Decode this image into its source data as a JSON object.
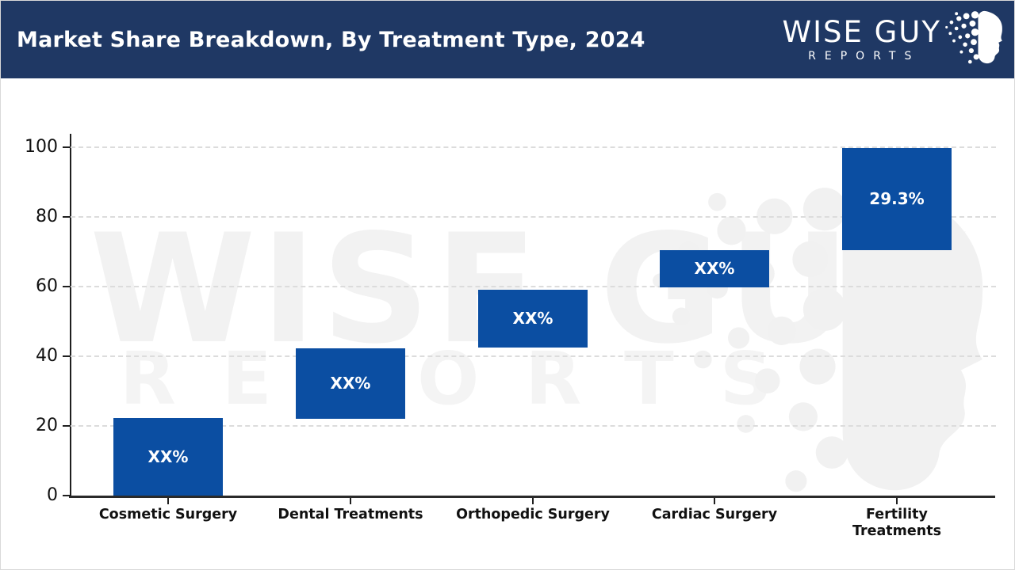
{
  "header": {
    "title": "Market Share Breakdown, By Treatment Type, 2024",
    "logo": {
      "line1": "WISE GUY",
      "line2": "REPORTS"
    }
  },
  "watermark": {
    "line1": "WISE GUY",
    "line2": "REPORTS"
  },
  "colors": {
    "header_bg": "#1F3864",
    "bar": "#0B4EA2",
    "bar_label": "#ffffff",
    "axis": "#1f1f1f",
    "grid": "#dcdcdc",
    "watermark": "#f2f2f2",
    "page_border": "#d9d9d9"
  },
  "chart_data": {
    "type": "bar",
    "subtype": "waterfall",
    "title": "Market Share Breakdown, By Treatment Type, 2024",
    "categories": [
      "Cosmetic Surgery",
      "Dental Treatments",
      "Orthopedic Surgery",
      "Cardiac Surgery",
      "Fertility Treatments"
    ],
    "segments": [
      {
        "category": "Cosmetic Surgery",
        "start": 0,
        "end": 22.3,
        "label": "XX%"
      },
      {
        "category": "Dental Treatments",
        "start": 22.1,
        "end": 42.3,
        "label": "XX%"
      },
      {
        "category": "Orthopedic Surgery",
        "start": 42.5,
        "end": 59.1,
        "label": "XX%"
      },
      {
        "category": "Cardiac Surgery",
        "start": 59.8,
        "end": 70.5,
        "label": "XX%"
      },
      {
        "category": "Fertility Treatments",
        "start": 70.5,
        "end": 99.8,
        "label": "29.3%"
      }
    ],
    "xlabel": "",
    "ylabel": "",
    "yticks": [
      0,
      20,
      40,
      60,
      80,
      100
    ],
    "ylim": [
      0,
      104
    ],
    "grid": "horizontal-dashed",
    "legend": "none"
  }
}
